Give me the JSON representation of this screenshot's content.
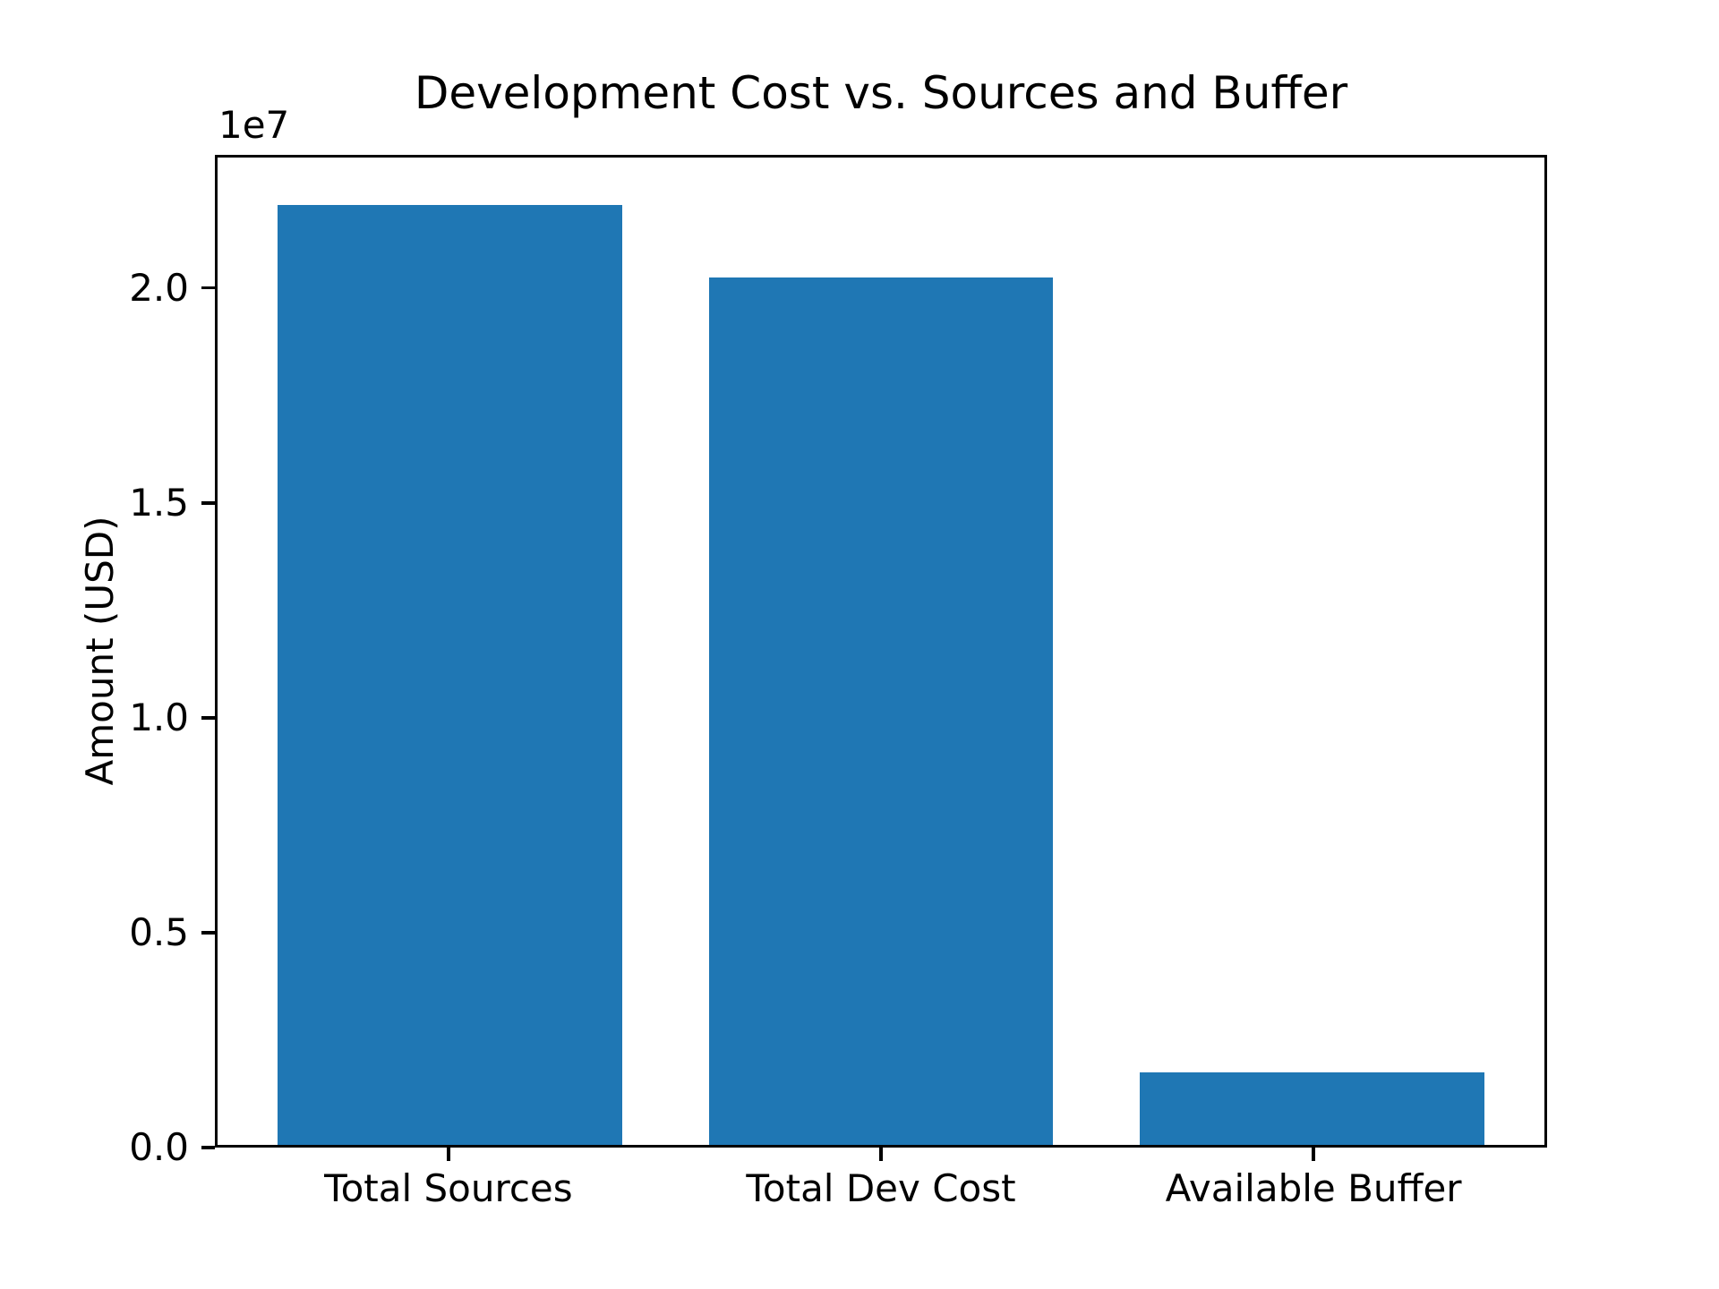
{
  "figure": {
    "background": "#ffffff",
    "text_color": "#000000"
  },
  "chart_data": {
    "type": "bar",
    "title": "Development Cost vs. Sources and Buffer",
    "xlabel": "",
    "ylabel": "Amount (USD)",
    "offset_text": "1e7",
    "categories": [
      "Total Sources",
      "Total Dev Cost",
      "Available Buffer"
    ],
    "values": [
      22000000,
      20300000,
      1700000
    ],
    "bar_color": "#1f77b4",
    "ylim": [
      0,
      23100000
    ],
    "yticks": [
      0,
      5000000,
      10000000,
      15000000,
      20000000
    ],
    "ytick_labels": [
      "0.0",
      "0.5",
      "1.0",
      "1.5",
      "2.0"
    ],
    "xlim": [
      -0.54,
      2.54
    ],
    "bar_width": 0.8,
    "grid": false,
    "legend": false
  }
}
